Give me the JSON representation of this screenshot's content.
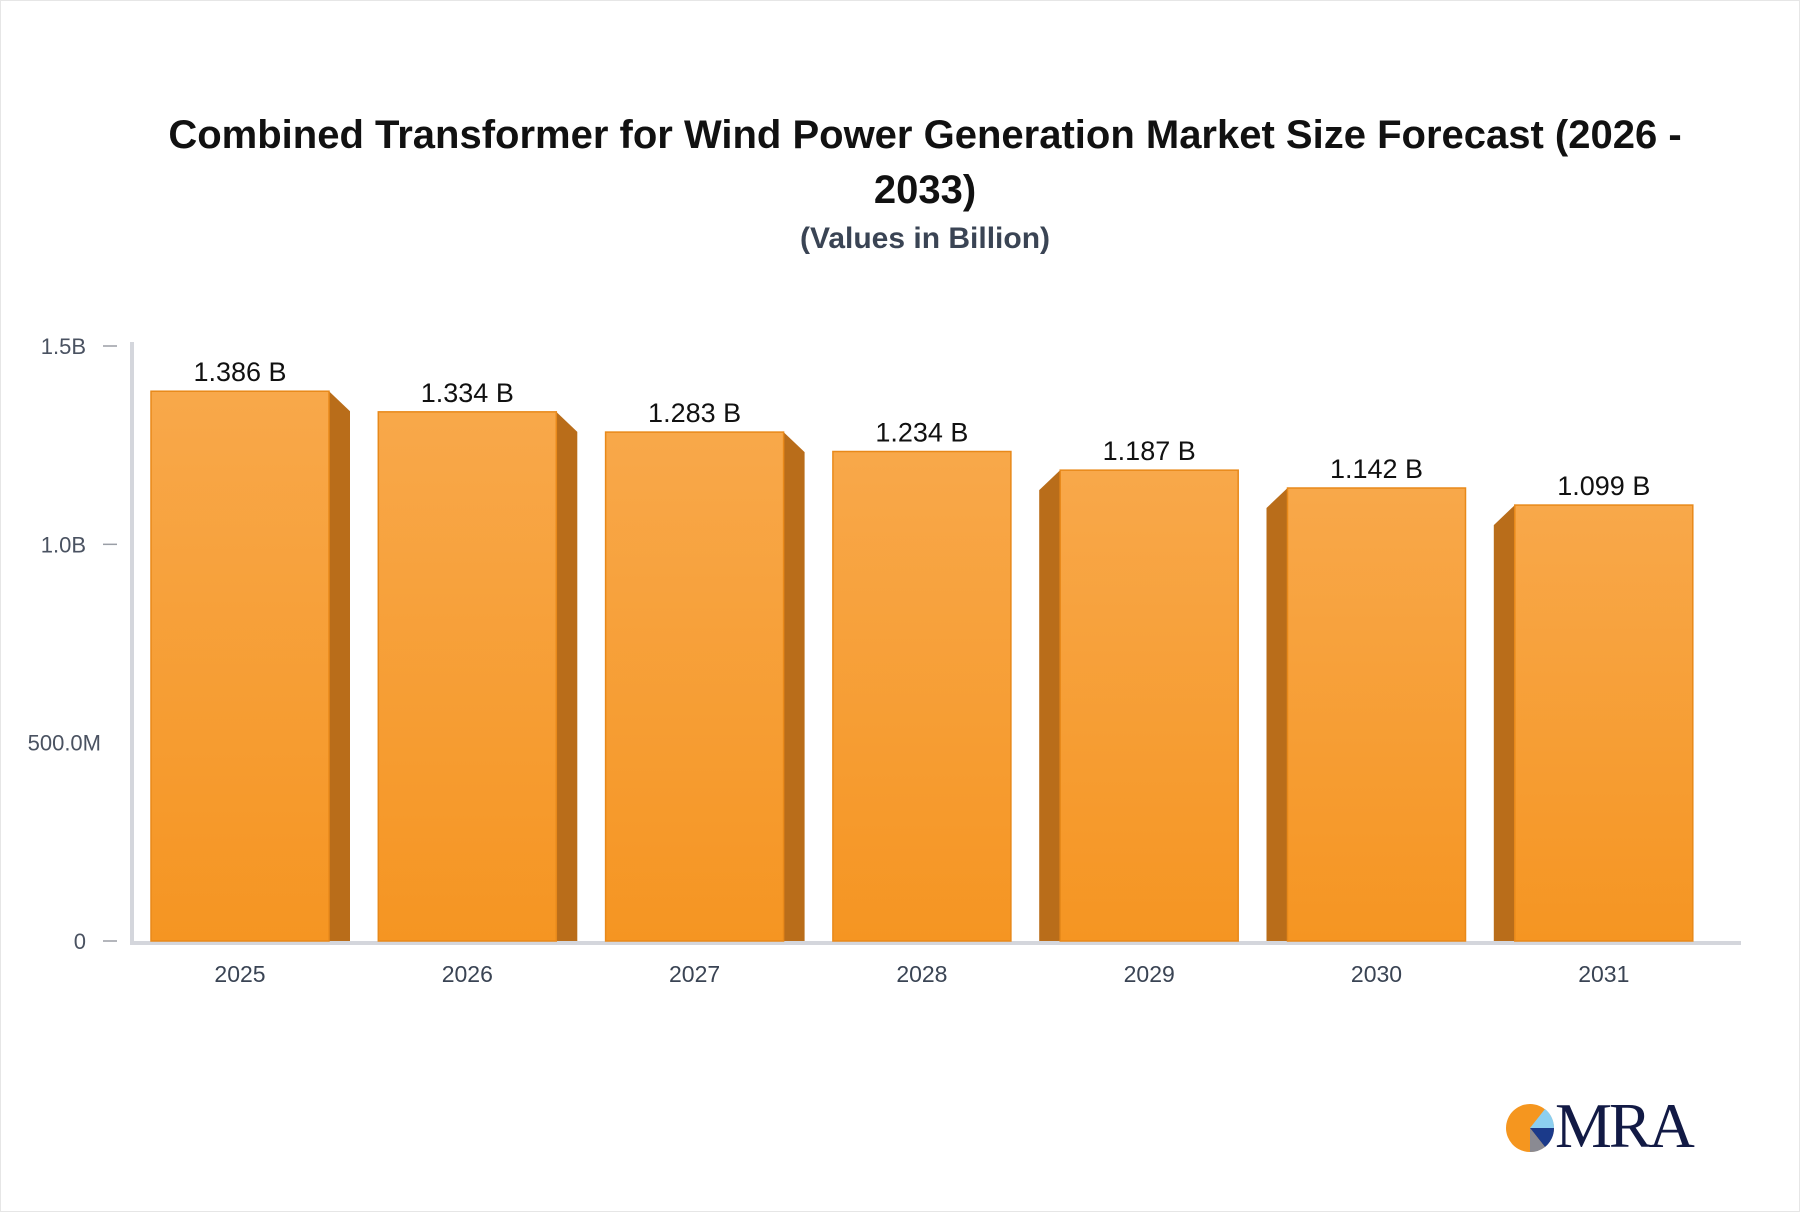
{
  "chart_data": {
    "type": "bar",
    "title": "Combined Transformer for Wind Power Generation Market Size Forecast (2026 - 2033)",
    "subtitle": "(Values in Billion)",
    "categories": [
      "2025",
      "2026",
      "2027",
      "2028",
      "2029",
      "2030",
      "2031"
    ],
    "values": [
      1.386,
      1.334,
      1.283,
      1.234,
      1.187,
      1.142,
      1.099
    ],
    "data_labels": [
      "1.386 B",
      "1.334 B",
      "1.283 B",
      "1.234 B",
      "1.187 B",
      "1.142 B",
      "1.099 B"
    ],
    "ylim": [
      0,
      1.5
    ],
    "yticks": [
      0,
      0.5,
      1.0,
      1.5
    ],
    "ytick_labels": [
      "0",
      "500.0M",
      "1.0B",
      "1.5B"
    ],
    "xlabel": "",
    "ylabel": "",
    "grid": false,
    "legend": "none",
    "colors": {
      "bar_top": "#f8a84a",
      "bar_bottom": "#f59522",
      "bar_side": "#b96d1a",
      "axis": "#d4d6dc"
    }
  },
  "logo": {
    "text": "MRA"
  }
}
